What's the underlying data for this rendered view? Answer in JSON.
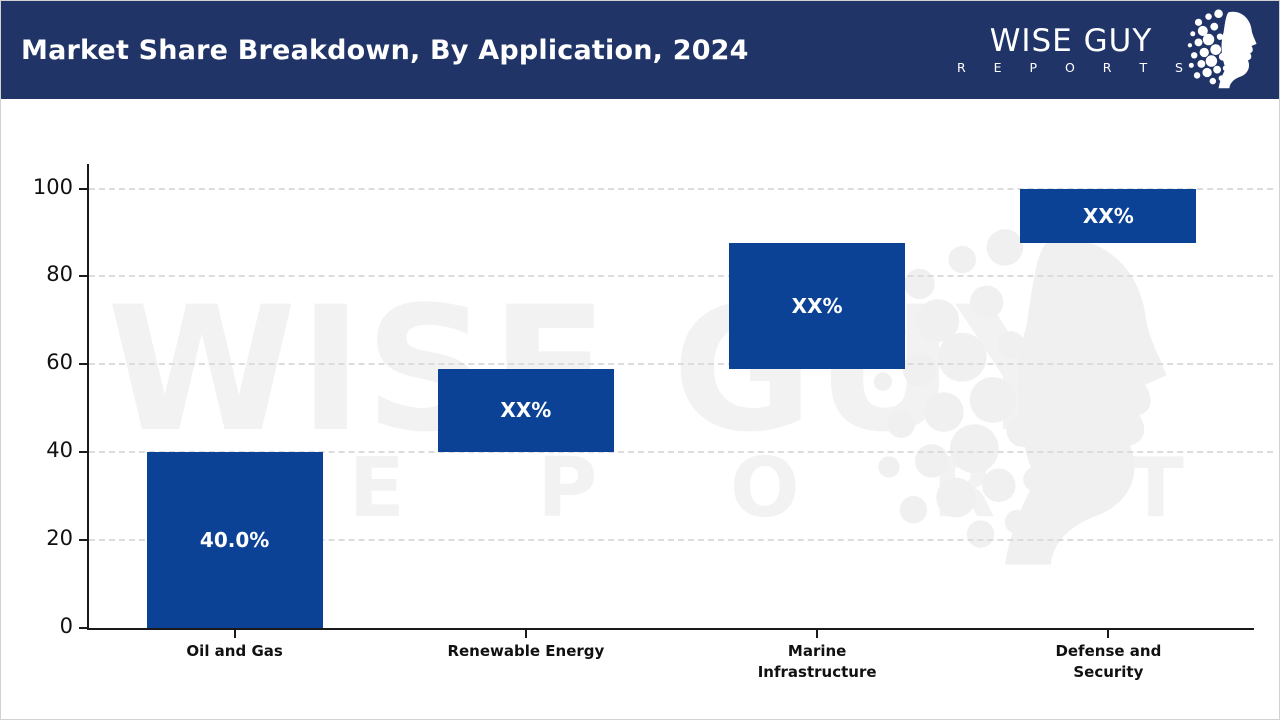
{
  "header": {
    "title": "Market Share Breakdown, By Application, 2024",
    "logo": {
      "name": "WISE GUY",
      "sub": "R E P O R T S",
      "icon": "dotted-head-profile-icon"
    }
  },
  "watermark": {
    "line1": "WISE GUY",
    "line2": "R E P O R T S"
  },
  "colors": {
    "header_bg": "#203468",
    "bar": "#0b4296",
    "grid": "#dcdcdc",
    "axis": "#1a1a1a",
    "watermark": "#f2f2f2",
    "bar_label": "#ffffff"
  },
  "chart_data": {
    "type": "bar",
    "subtype": "waterfall",
    "title": "Market Share Breakdown, By Application, 2024",
    "categories": [
      "Oil and Gas",
      "Renewable Energy",
      "Marine\nInfrastructure",
      "Defense and\nSecurity"
    ],
    "segments": [
      {
        "category": "Oil and Gas",
        "start": 0,
        "end": 40,
        "label": "40.0%"
      },
      {
        "category": "Renewable Energy",
        "start": 40,
        "end": 59,
        "label": "XX%"
      },
      {
        "category": "Marine Infrastructure",
        "start": 59,
        "end": 87.5,
        "label": "XX%"
      },
      {
        "category": "Defense and Security",
        "start": 87.5,
        "end": 100,
        "label": "XX%"
      }
    ],
    "ylim": [
      0,
      100
    ],
    "yticks": [
      0,
      20,
      40,
      60,
      80,
      100
    ],
    "xlabel": "",
    "ylabel": "",
    "grid": "horizontal-dashed",
    "legend": "none"
  }
}
